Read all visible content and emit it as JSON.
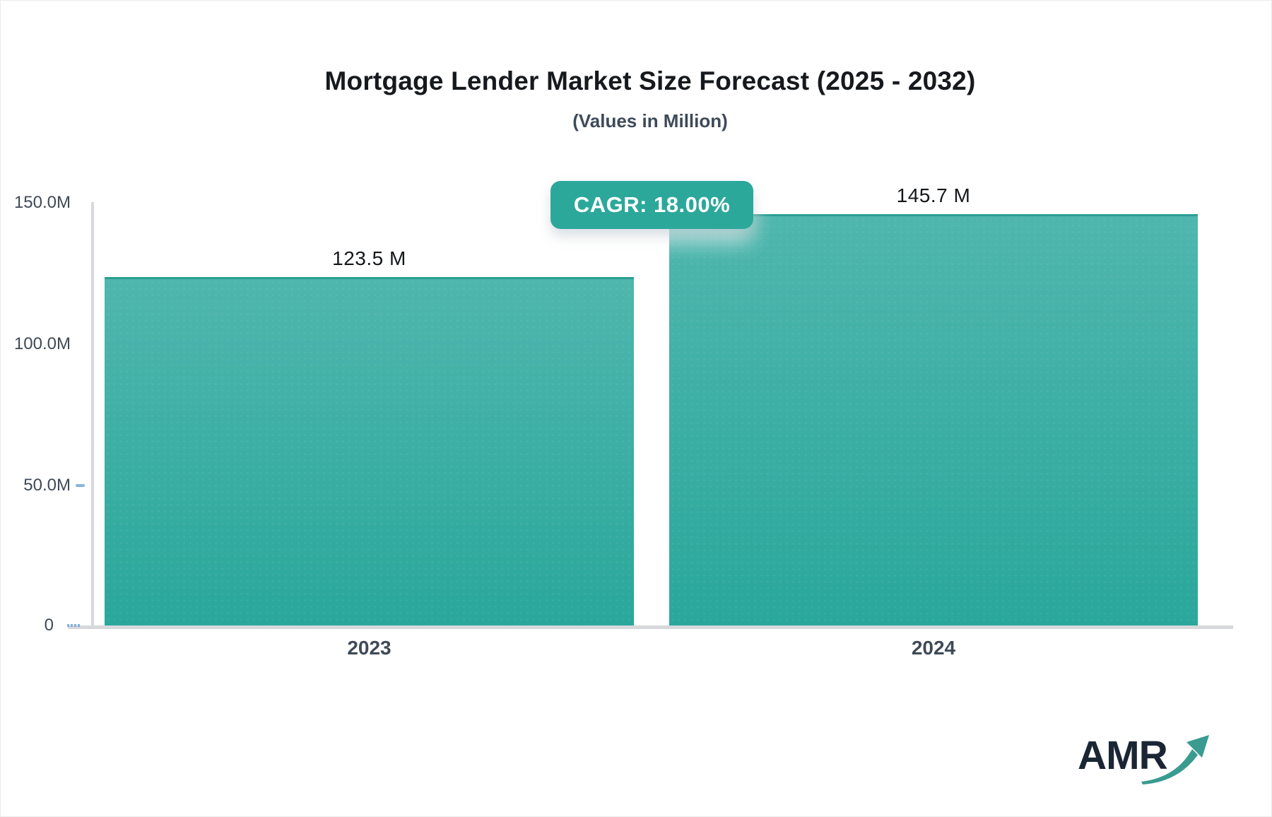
{
  "chart_data": {
    "type": "bar",
    "title": "Mortgage Lender Market Size Forecast (2025 - 2032)",
    "subtitle": "(Values in Million)",
    "categories": [
      "2023",
      "2024"
    ],
    "values": [
      123.5,
      145.7
    ],
    "value_labels": [
      "123.5 M",
      "145.7 M"
    ],
    "unit": "Million",
    "ylim": [
      0,
      150
    ],
    "ytick_labels": [
      "150.0M",
      "100.0M",
      "50.0M",
      "0"
    ],
    "grid": "off",
    "legend": "none",
    "annotation": {
      "cagr_label": "CAGR: 18.00%"
    },
    "colors": {
      "bar_gradient_top": "#4fb6ad",
      "bar_gradient_bottom": "#2aa79b",
      "bar_top_edge": "#2c9e94",
      "badge_background": "#2ca89b",
      "badge_text": "#ffffff",
      "axis_line": "#d7d8dc",
      "tick_mark": "#6fa7db",
      "title_text": "#16191d",
      "subtitle_text": "#3e4a59",
      "axis_label_text": "#3f4a57",
      "logo_text": "#1b2634",
      "logo_arrow": "#3a9b90"
    }
  },
  "logo": {
    "text": "AMR",
    "icon": "growth-arrow-icon"
  }
}
